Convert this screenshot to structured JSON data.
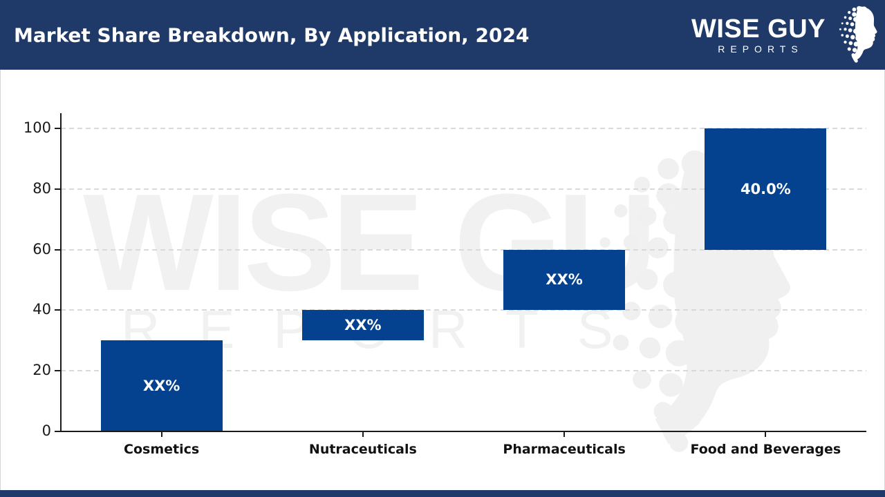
{
  "header": {
    "title": "Market Share Breakdown, By Application, 2024",
    "logo": {
      "wordmark": "WISE GUY",
      "subtext": "REPORTS"
    }
  },
  "watermark": {
    "wordmark": "WISE GUY",
    "subtext": "REPORTS"
  },
  "chart_data": {
    "type": "bar",
    "subtype": "waterfall-floating-segments",
    "title": "Market Share Breakdown, By Application, 2024",
    "categories": [
      "Cosmetics",
      "Nutraceuticals",
      "Pharmaceuticals",
      "Food and Beverages"
    ],
    "series": [
      {
        "name": "Market Share (%)",
        "segments": [
          {
            "category": "Cosmetics",
            "start": 0,
            "end": 30,
            "label": "XX%"
          },
          {
            "category": "Nutraceuticals",
            "start": 30,
            "end": 40,
            "label": "XX%"
          },
          {
            "category": "Pharmaceuticals",
            "start": 40,
            "end": 60,
            "label": "XX%"
          },
          {
            "category": "Food and Beverages",
            "start": 60,
            "end": 100,
            "label": "40.0%"
          }
        ]
      }
    ],
    "yticks": [
      0,
      20,
      40,
      60,
      80,
      100
    ],
    "ylim": [
      0,
      105
    ],
    "xlabel": "",
    "ylabel": "",
    "grid": "horizontal-dashed",
    "legend": "none"
  },
  "colors": {
    "header_bg": "#1f3a68",
    "footer_bg": "#1f3a68",
    "bar": "#04428f",
    "bar_label": "#ffffff",
    "gridline": "#d9d9d9",
    "axis": "#1a1a1a",
    "watermark": "#f1f1f2"
  }
}
